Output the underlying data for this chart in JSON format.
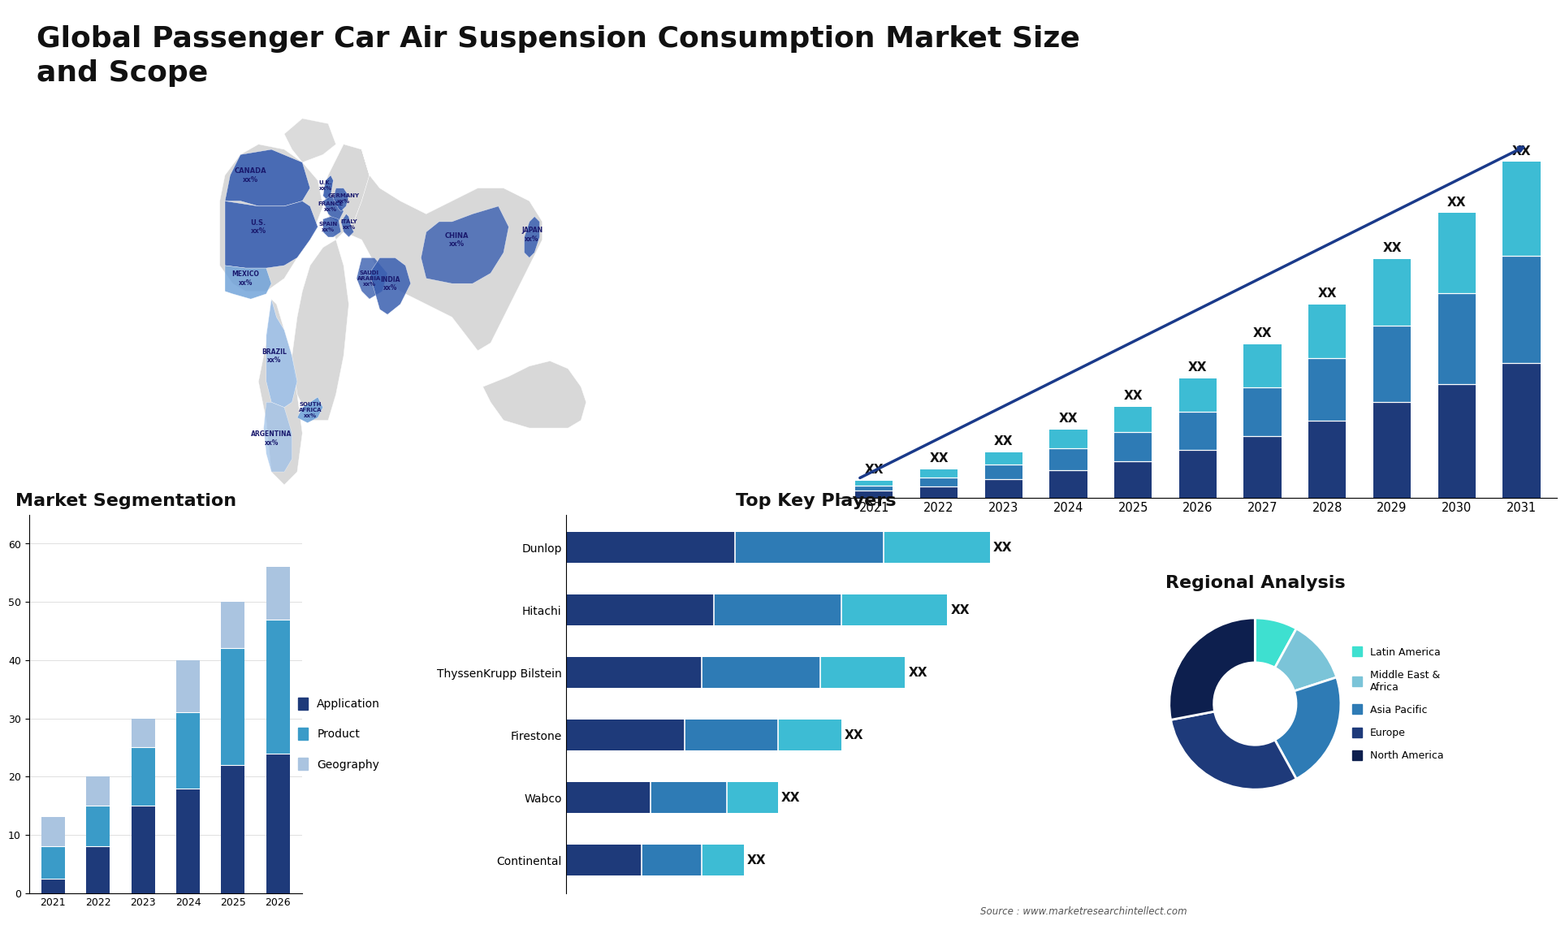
{
  "title": "Global Passenger Car Air Suspension Consumption Market Size\nand Scope",
  "title_fontsize": 26,
  "background_color": "#ffffff",
  "bar_chart_years": [
    2021,
    2022,
    2023,
    2024,
    2025,
    2026,
    2027,
    2028,
    2029,
    2030,
    2031
  ],
  "bar_totals": [
    3,
    5,
    8,
    12,
    16,
    21,
    27,
    34,
    42,
    50,
    59
  ],
  "bar_f1": [
    0.4,
    0.4,
    0.4,
    0.4,
    0.4,
    0.4,
    0.4,
    0.4,
    0.4,
    0.4,
    0.4
  ],
  "bar_f2": [
    0.32,
    0.32,
    0.32,
    0.32,
    0.32,
    0.32,
    0.32,
    0.32,
    0.32,
    0.32,
    0.32
  ],
  "bar_f3": [
    0.28,
    0.28,
    0.28,
    0.28,
    0.28,
    0.28,
    0.28,
    0.28,
    0.28,
    0.28,
    0.28
  ],
  "bar_colors": [
    "#1e3a7a",
    "#2e7bb5",
    "#3dbcd4"
  ],
  "bar_label": "XX",
  "seg_years": [
    "2021",
    "2022",
    "2023",
    "2024",
    "2025",
    "2026"
  ],
  "seg_app": [
    2.5,
    8.0,
    15.0,
    18.0,
    22.0,
    24.0
  ],
  "seg_prod": [
    5.5,
    7.0,
    10.0,
    13.0,
    20.0,
    23.0
  ],
  "seg_geo": [
    5.0,
    5.0,
    5.0,
    9.0,
    8.0,
    9.0
  ],
  "seg_colors": [
    "#1e3a7a",
    "#3a9bc8",
    "#aac4e0"
  ],
  "seg_labels": [
    "Application",
    "Product",
    "Geography"
  ],
  "seg_title": "Market Segmentation",
  "seg_yticks": [
    0,
    10,
    20,
    30,
    40,
    50,
    60
  ],
  "key_players": [
    "Dunlop",
    "Hitachi",
    "ThyssenKrupp Bilstein",
    "Firestone",
    "Wabco",
    "Continental"
  ],
  "kp_s1": [
    4.0,
    3.5,
    3.2,
    2.8,
    2.0,
    1.8
  ],
  "kp_s2": [
    3.5,
    3.0,
    2.8,
    2.2,
    1.8,
    1.4
  ],
  "kp_s3": [
    2.5,
    2.5,
    2.0,
    1.5,
    1.2,
    1.0
  ],
  "kp_colors": [
    "#1e3a7a",
    "#2e7bb5",
    "#3dbcd4"
  ],
  "kp_title": "Top Key Players",
  "kp_label": "XX",
  "pie_values": [
    8,
    12,
    22,
    30,
    28
  ],
  "pie_colors": [
    "#3ee0d0",
    "#7bc4d8",
    "#2e7bb5",
    "#1e3a7a",
    "#0d1f4e"
  ],
  "pie_labels": [
    "Latin America",
    "Middle East &\nAfrica",
    "Asia Pacific",
    "Europe",
    "North America"
  ],
  "pie_title": "Regional Analysis",
  "source_text": "Source : www.marketresearchintellect.com",
  "map_bg_color": "#d8d8d8",
  "map_highlight_dark": "#3a5fb0",
  "map_highlight_mid": "#6a9fd8",
  "map_highlight_light": "#9bbfe8",
  "map_label_color": "#1a1a6e",
  "logo_bg": "#1a3a6e"
}
